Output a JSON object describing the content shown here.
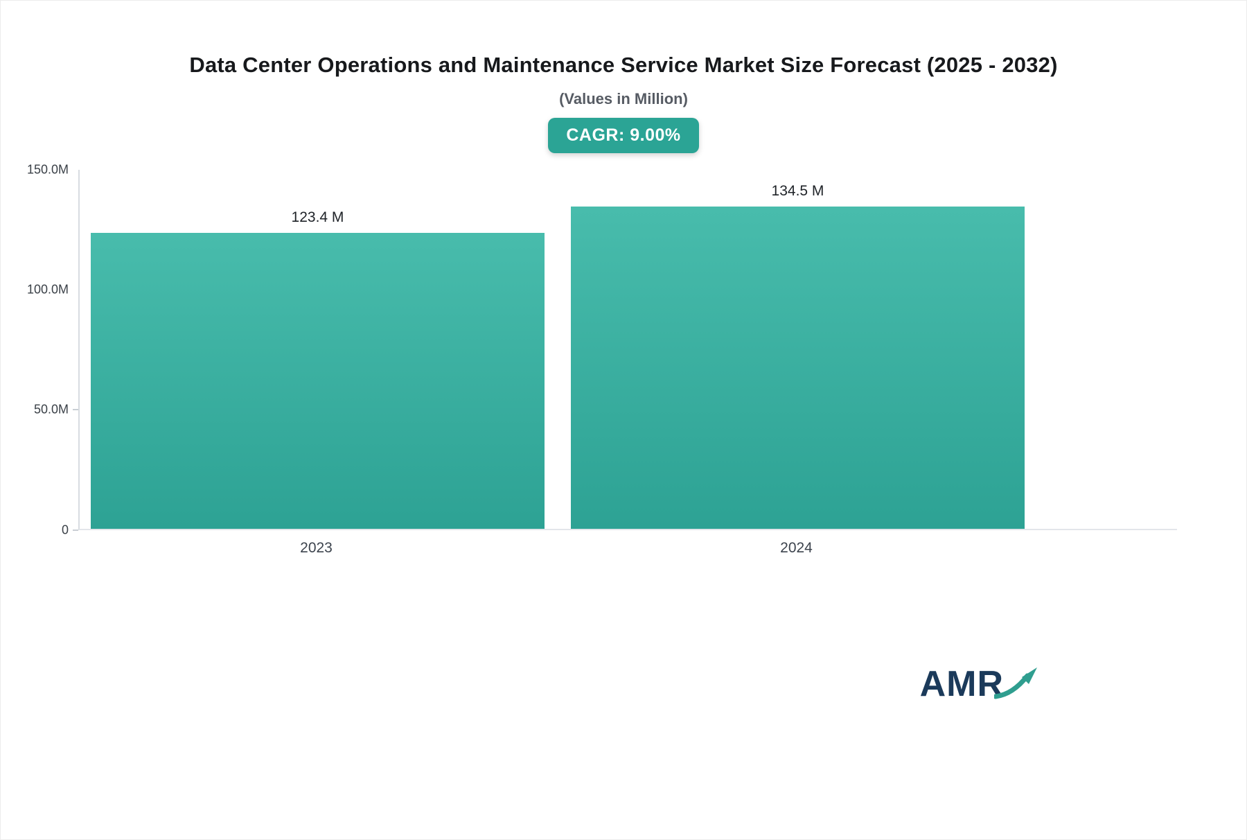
{
  "accent_color": "#2ba495",
  "header": {
    "title": "Data Center Operations and Maintenance Service Market Size Forecast (2025 - 2032)",
    "subtitle": "(Values in Million)",
    "cagr_badge": "CAGR: 9.00%"
  },
  "chart_data": {
    "type": "bar",
    "title": "Data Center Operations and Maintenance Service Market Size Forecast (2025 - 2032)",
    "subtitle": "(Values in Million)",
    "categories": [
      "2023",
      "2024"
    ],
    "values": [
      123.4,
      134.5
    ],
    "value_labels": [
      "123.4 M",
      "134.5 M"
    ],
    "y_ticks": [
      "150.0M",
      "100.0M",
      "50.0M",
      "0"
    ],
    "ylim": [
      0,
      150
    ],
    "grid": false,
    "legend": "none",
    "bar_color_top": "#48bcac",
    "bar_color_bottom": "#2da294"
  },
  "logo": {
    "text": "AMR"
  }
}
